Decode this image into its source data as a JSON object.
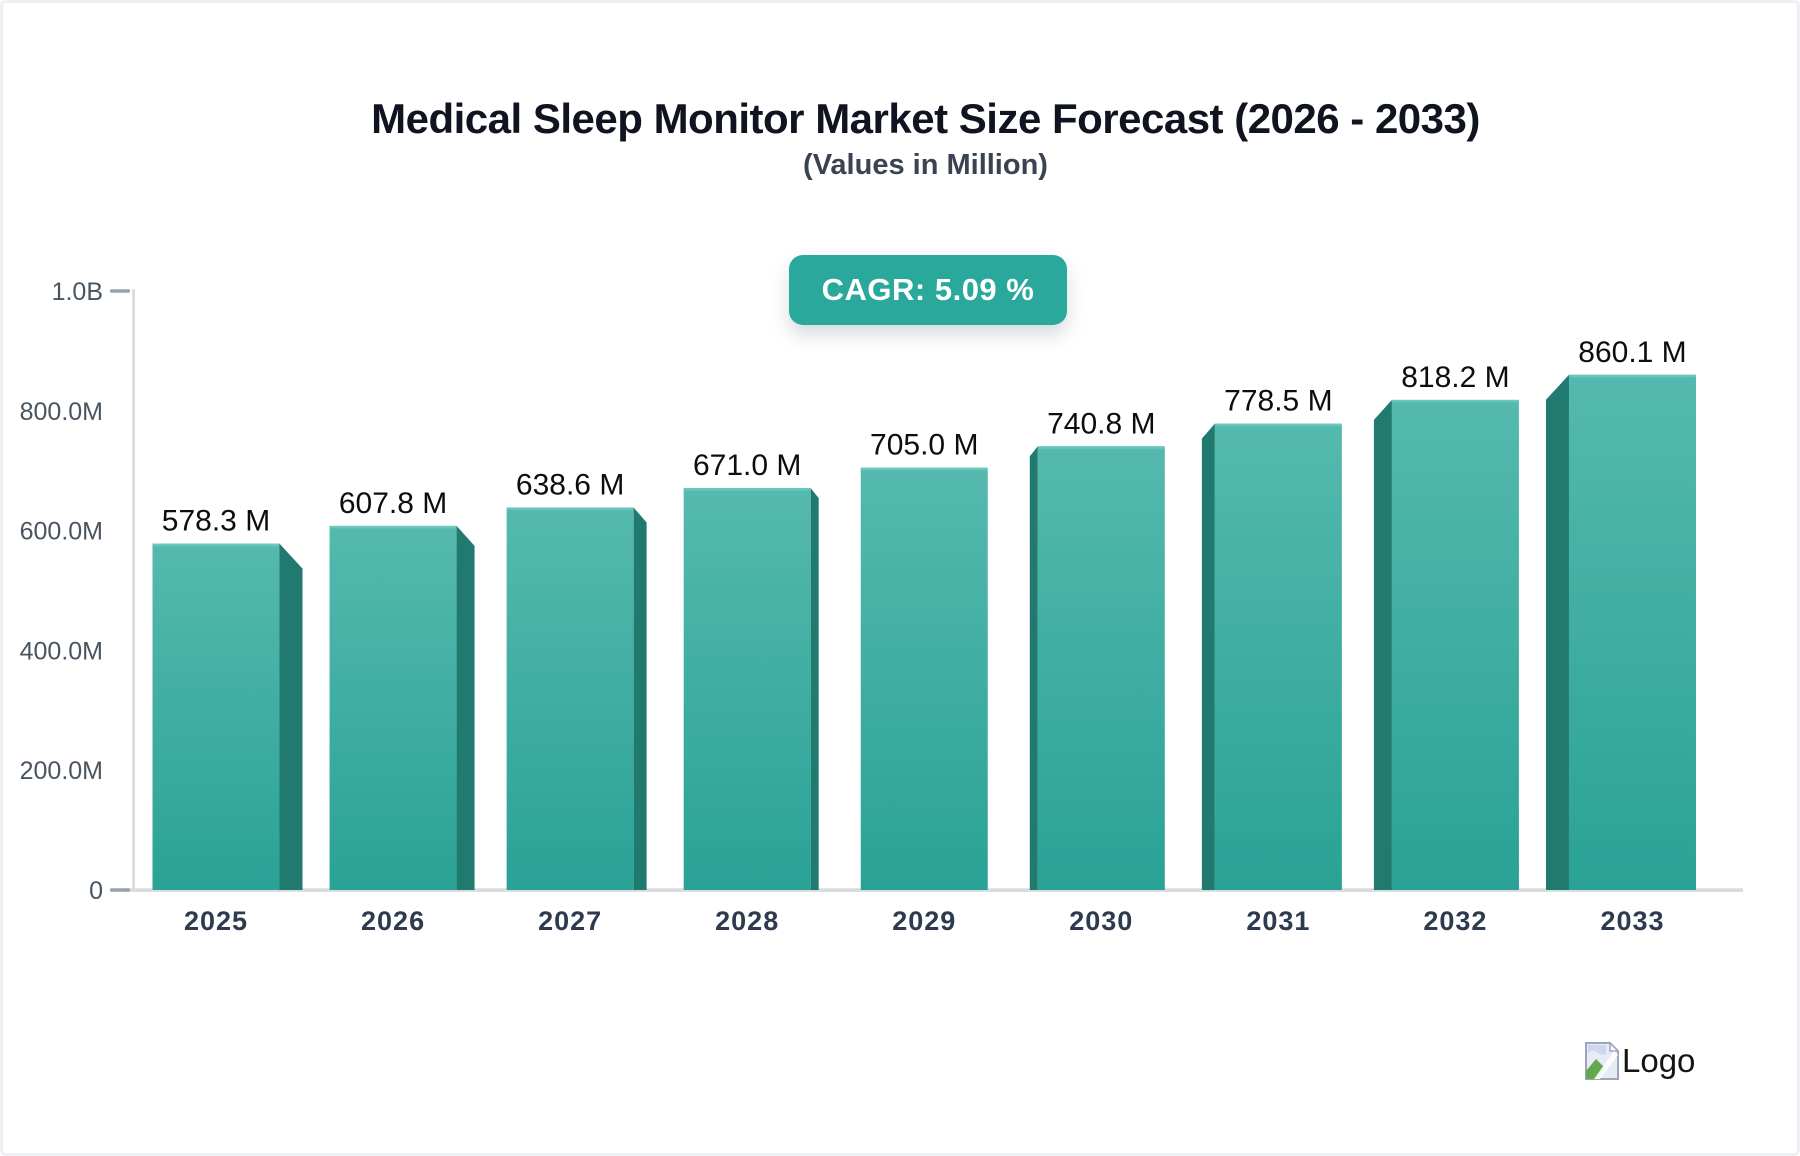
{
  "header": {
    "title": "Medical Sleep Monitor Market Size Forecast (2026 - 2033)",
    "subtitle": "(Values in Million)"
  },
  "badge": {
    "label": "CAGR: 5.09 %",
    "bg_color": "#2aa89b"
  },
  "logo": {
    "alt_text": "Logo",
    "icon": "broken-image-icon"
  },
  "chart_data": {
    "type": "bar",
    "title": "Medical Sleep Monitor Market Size Forecast (2026 - 2033)",
    "subtitle": "(Values in Million)",
    "cagr_label": "CAGR: 5.09 %",
    "categories": [
      "2025",
      "2026",
      "2027",
      "2028",
      "2029",
      "2030",
      "2031",
      "2032",
      "2033"
    ],
    "values": [
      578.3,
      607.8,
      638.6,
      671.0,
      705.0,
      740.8,
      778.5,
      818.2,
      860.1
    ],
    "value_labels": [
      "578.3 M",
      "607.8 M",
      "638.6 M",
      "671.0 M",
      "705.0 M",
      "740.8 M",
      "778.5 M",
      "818.2 M",
      "860.1 M"
    ],
    "unit_label": "Million",
    "xlabel": "",
    "ylabel": "",
    "ylim": [
      0,
      1000
    ],
    "grid": false,
    "legend": "none",
    "y_ticks": [
      {
        "label": "0",
        "value": 0,
        "dash": true
      },
      {
        "label": "200.0M",
        "value": 200,
        "dash": false
      },
      {
        "label": "400.0M",
        "value": 400,
        "dash": false
      },
      {
        "label": "600.0M",
        "value": 600,
        "dash": false
      },
      {
        "label": "800.0M",
        "value": 800,
        "dash": false
      },
      {
        "label": "1.0B",
        "value": 1000,
        "dash": true
      }
    ],
    "colors": {
      "bar_face_top": "#55b9ae",
      "bar_face_bottom": "#2aa296",
      "bar_top_highlight": "#69c7bc",
      "bar_side": "#217a70",
      "axis_line": "#d8dade",
      "tick_dash": "#97a0ac",
      "y_tick_text": "#4a5562",
      "x_category_text": "#2e3a4d",
      "value_label_text": "#0d0d0d"
    }
  }
}
